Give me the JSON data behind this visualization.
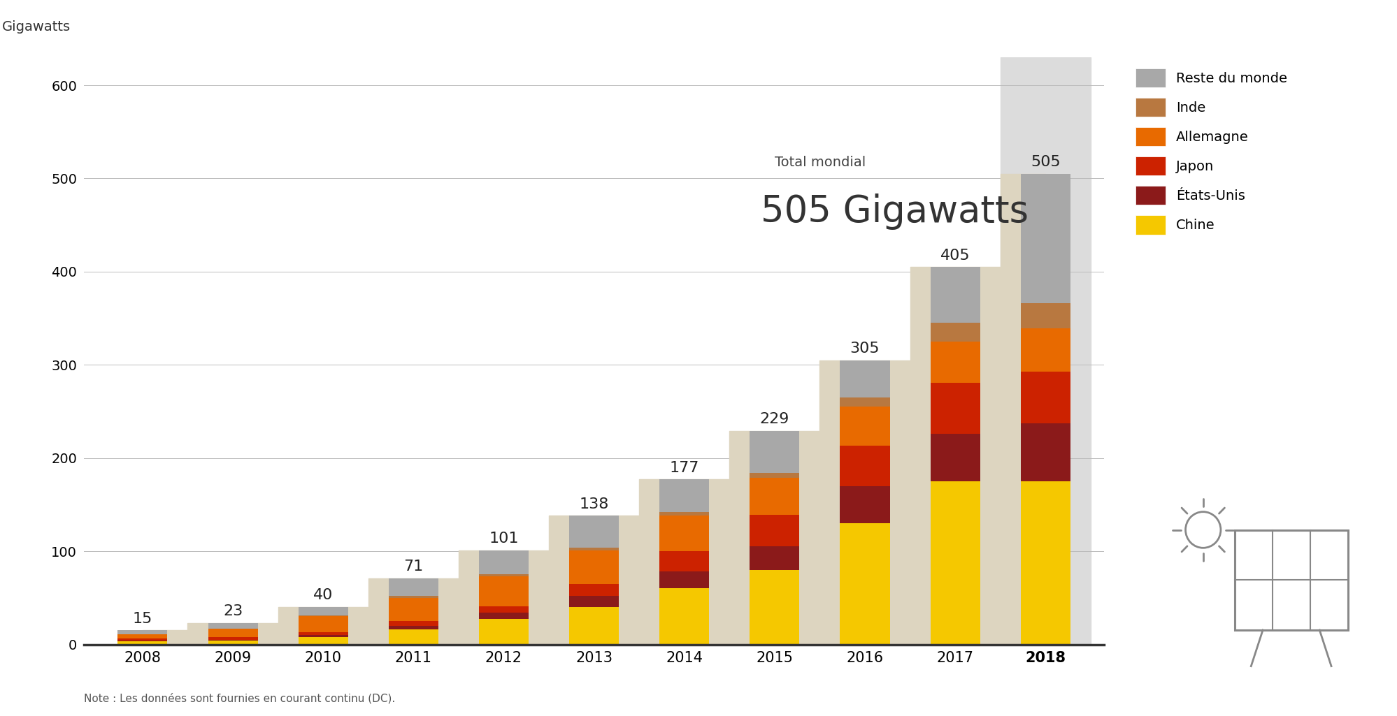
{
  "years": [
    2008,
    2009,
    2010,
    2011,
    2012,
    2013,
    2014,
    2015,
    2016,
    2017,
    2018
  ],
  "totals": [
    15,
    23,
    40,
    71,
    101,
    138,
    177,
    229,
    305,
    405,
    505
  ],
  "categories": [
    "Chine",
    "États-Unis",
    "Japon",
    "Allemagne",
    "Inde",
    "Reste du monde"
  ],
  "colors": [
    "#F5C800",
    "#8B1A1A",
    "#CC2200",
    "#E86A00",
    "#B87840",
    "#A8A8A8"
  ],
  "data": {
    "Chine": [
      3,
      4,
      8,
      16,
      27,
      40,
      60,
      80,
      130,
      175,
      175
    ],
    "États-Unis": [
      1,
      1,
      2,
      4,
      7,
      12,
      18,
      25,
      40,
      51,
      62
    ],
    "Japon": [
      2,
      3,
      3,
      5,
      7,
      13,
      22,
      34,
      43,
      55,
      56
    ],
    "Allemagne": [
      5,
      9,
      17,
      25,
      32,
      36,
      38,
      40,
      42,
      44,
      46
    ],
    "Inde": [
      0,
      0,
      1,
      2,
      2,
      3,
      4,
      5,
      10,
      20,
      27
    ],
    "Reste du monde": [
      4,
      6,
      9,
      19,
      26,
      34,
      35,
      45,
      40,
      60,
      139
    ]
  },
  "background_color": "#FFFFFF",
  "area_color": "#DDD5C0",
  "highlight_color": "#DCDCDC",
  "ylabel": "Gigawatts",
  "ylim": [
    0,
    630
  ],
  "yticks": [
    0,
    100,
    200,
    300,
    400,
    500,
    600
  ],
  "note": "Note : Les données sont fournies en courant continu (DC).",
  "annotation_total": "Total mondial",
  "annotation_value": "505 Gigawatts",
  "bar_width": 0.55,
  "highlight_year": 2018
}
